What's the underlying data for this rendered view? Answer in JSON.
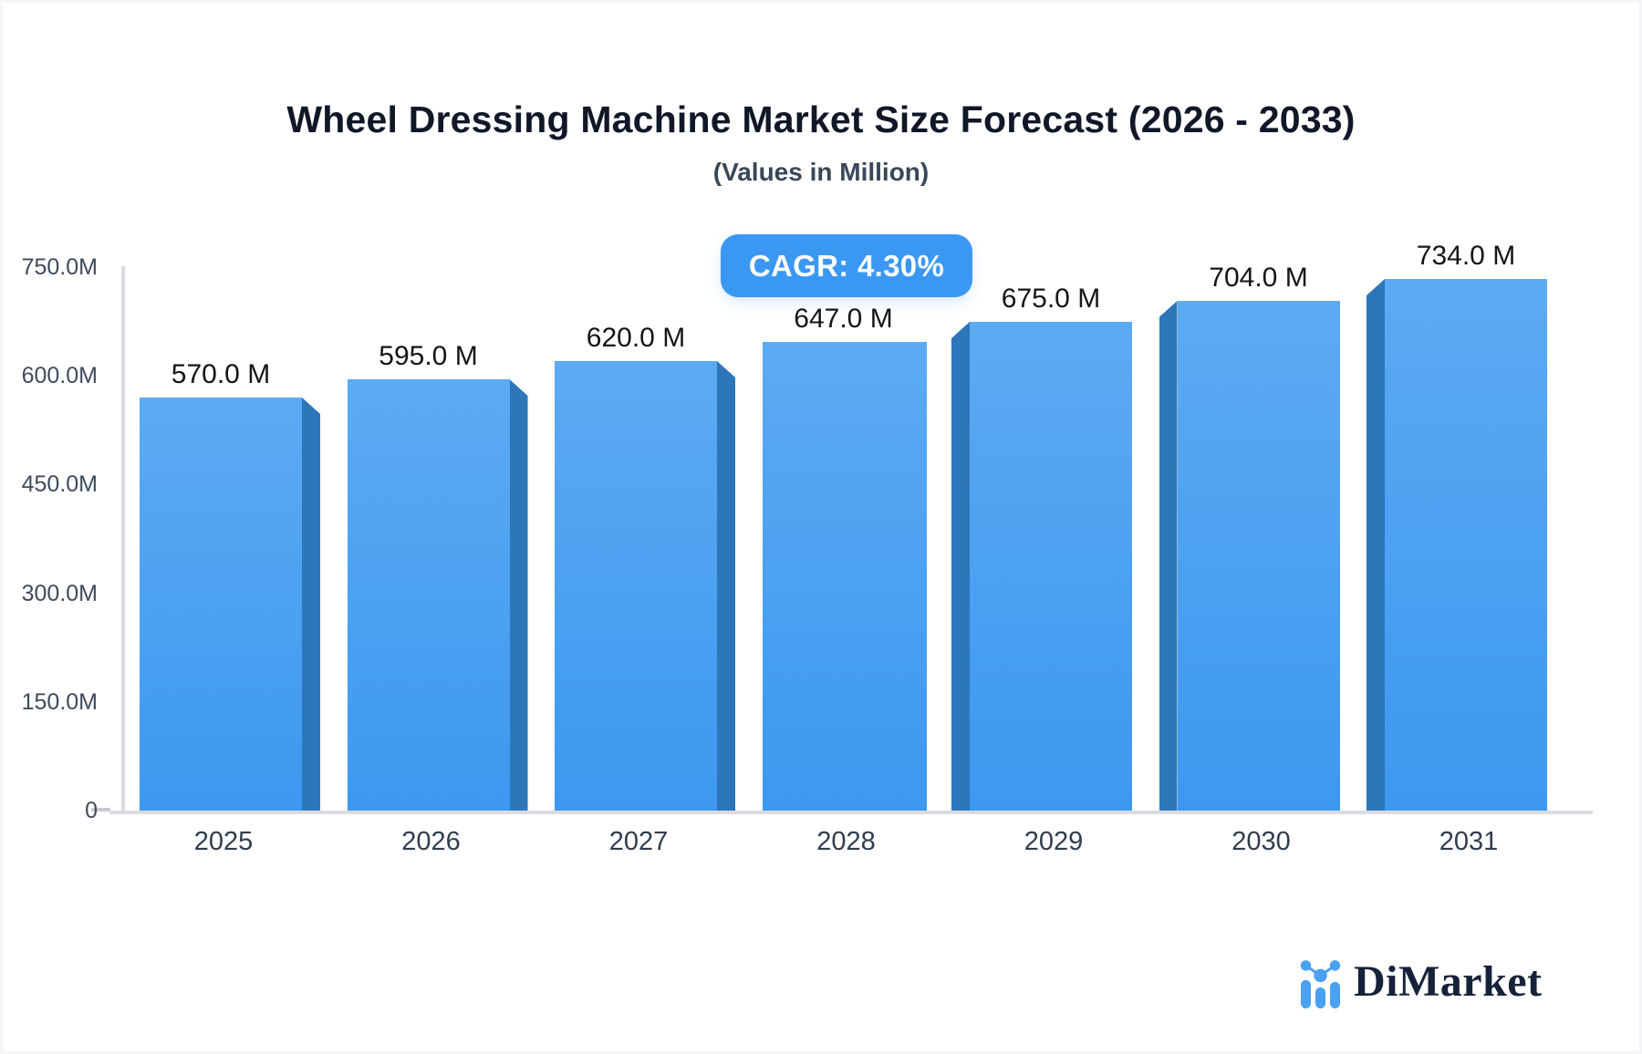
{
  "chart_data": {
    "type": "bar",
    "title": "Wheel Dressing Machine Market Size Forecast (2026 - 2033)",
    "subtitle": "(Values in Million)",
    "cagr_badge": "CAGR: 4.30%",
    "categories": [
      "2025",
      "2026",
      "2027",
      "2028",
      "2029",
      "2030",
      "2031"
    ],
    "values": [
      570.0,
      595.0,
      620.0,
      647.0,
      675.0,
      704.0,
      734.0
    ],
    "data_labels": [
      "570.0 M",
      "595.0 M",
      "620.0 M",
      "647.0 M",
      "675.0 M",
      "704.0 M",
      "734.0 M"
    ],
    "ytick_labels": [
      "0",
      "150.0M",
      "300.0M",
      "450.0M",
      "600.0M",
      "750.0M"
    ],
    "ylim": [
      0,
      750
    ],
    "xlabel": "",
    "ylabel": "",
    "grid": false,
    "legend": "none",
    "colors": {
      "bar_top": "#5caaf2",
      "bar_bottom": "#3d98f0",
      "bar_side": "#2e76ba",
      "badge_bg": "#3b98f2",
      "badge_text": "#ffffff",
      "axis_line": "#d9dbe0",
      "title_text": "#101828",
      "subtitle_text": "#3a4759",
      "tick_text": "#3e4b5d",
      "value_text": "#131619"
    }
  },
  "logo": {
    "text": "DiMarket",
    "icon": "mini-bar-chart-icon",
    "text_color": "#15223a",
    "icon_color": "#4aa0f1"
  }
}
